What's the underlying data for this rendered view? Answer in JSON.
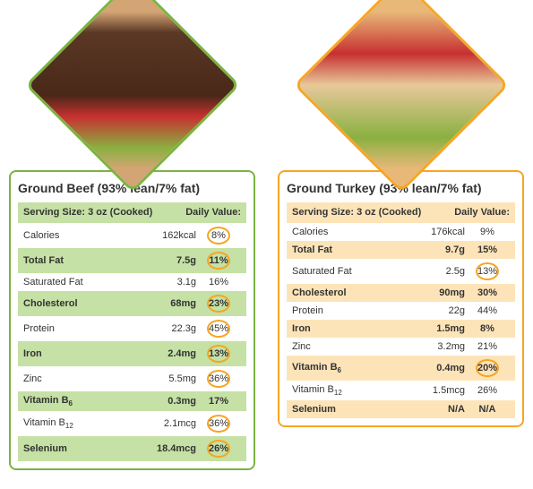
{
  "beef": {
    "title": "Ground Beef (93% lean/7% fat)",
    "color": "#7cb342",
    "serving_label": "Serving Size: 3 oz (Cooked)",
    "dv_label": "Daily Value:",
    "rows": [
      {
        "name": "Calories",
        "val": "162kcal",
        "dv": "8%",
        "bold": false,
        "circled": true
      },
      {
        "name": "Total Fat",
        "val": "7.5g",
        "dv": "11%",
        "bold": true,
        "circled": true
      },
      {
        "name": "Saturated Fat",
        "val": "3.1g",
        "dv": "16%",
        "bold": false,
        "circled": false
      },
      {
        "name": "Cholesterol",
        "val": "68mg",
        "dv": "23%",
        "bold": true,
        "circled": true
      },
      {
        "name": "Protein",
        "val": "22.3g",
        "dv": "45%",
        "bold": false,
        "circled": true
      },
      {
        "name": "Iron",
        "val": "2.4mg",
        "dv": "13%",
        "bold": true,
        "circled": true
      },
      {
        "name": "Zinc",
        "val": "5.5mg",
        "dv": "36%",
        "bold": false,
        "circled": true
      },
      {
        "name": "Vitamin B₆",
        "val": "0.3mg",
        "dv": "17%",
        "bold": true,
        "circled": false
      },
      {
        "name": "Vitamin B₁₂",
        "val": "2.1mcg",
        "dv": "36%",
        "bold": false,
        "circled": true
      },
      {
        "name": "Selenium",
        "val": "18.4mcg",
        "dv": "26%",
        "bold": true,
        "circled": true
      }
    ]
  },
  "turkey": {
    "title": "Ground Turkey (93% lean/7% fat)",
    "color": "#f5a623",
    "serving_label": "Serving Size: 3 oz (Cooked)",
    "dv_label": "Daily Value:",
    "rows": [
      {
        "name": "Calories",
        "val": "176kcal",
        "dv": "9%",
        "bold": false,
        "circled": false
      },
      {
        "name": "Total Fat",
        "val": "9.7g",
        "dv": "15%",
        "bold": true,
        "circled": false
      },
      {
        "name": "Saturated Fat",
        "val": "2.5g",
        "dv": "13%",
        "bold": false,
        "circled": true
      },
      {
        "name": "Cholesterol",
        "val": "90mg",
        "dv": "30%",
        "bold": true,
        "circled": false
      },
      {
        "name": "Protein",
        "val": "22g",
        "dv": "44%",
        "bold": false,
        "circled": false
      },
      {
        "name": "Iron",
        "val": "1.5mg",
        "dv": "8%",
        "bold": true,
        "circled": false
      },
      {
        "name": "Zinc",
        "val": "3.2mg",
        "dv": "21%",
        "bold": false,
        "circled": false
      },
      {
        "name": "Vitamin B₆",
        "val": "0.4mg",
        "dv": "20%",
        "bold": true,
        "circled": true
      },
      {
        "name": "Vitamin B₁₂",
        "val": "1.5mcg",
        "dv": "26%",
        "bold": false,
        "circled": false
      },
      {
        "name": "Selenium",
        "val": "N/A",
        "dv": "N/A",
        "bold": true,
        "circled": false
      }
    ]
  }
}
